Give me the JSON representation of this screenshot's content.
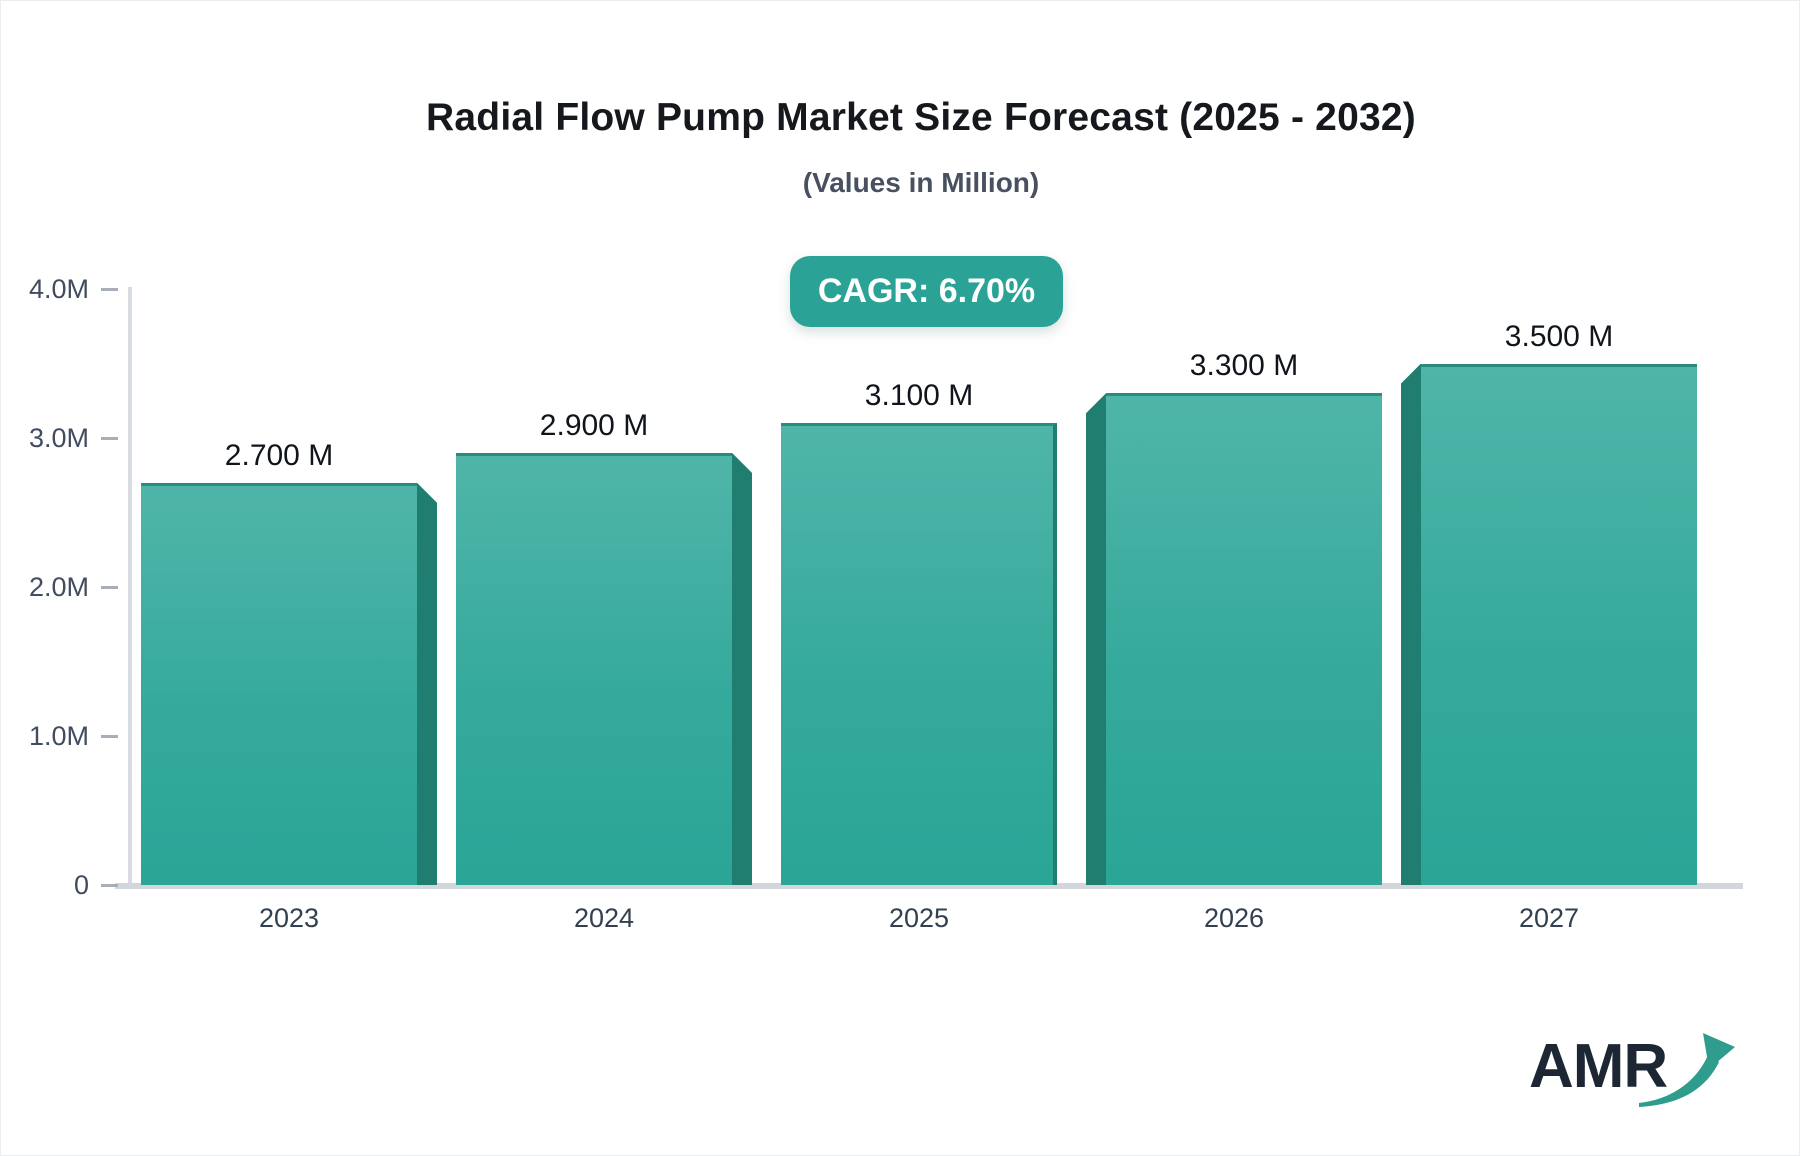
{
  "header": {
    "title": "Radial Flow Pump Market Size Forecast (2025 - 2032)",
    "subtitle": "(Values in Million)"
  },
  "cagr_badge": {
    "label": "CAGR: 6.70%"
  },
  "chart_data": {
    "type": "bar",
    "title": "Radial Flow Pump Market Size Forecast (2025 - 2032)",
    "subtitle": "(Values in Million)",
    "unit": "Million (M)",
    "cagr": "6.70%",
    "categories": [
      "2023",
      "2024",
      "2025",
      "2026",
      "2027"
    ],
    "values": [
      2.7,
      2.9,
      3.1,
      3.3,
      3.5
    ],
    "value_labels": [
      "2.700 M",
      "2.900 M",
      "3.100 M",
      "3.300 M",
      "3.500 M"
    ],
    "ylim": [
      0,
      4.0
    ],
    "yticks": [
      {
        "value": 4.0,
        "label": "4.0M"
      },
      {
        "value": 3.0,
        "label": "3.0M"
      },
      {
        "value": 2.0,
        "label": "2.0M"
      },
      {
        "value": 1.0,
        "label": "1.0M"
      },
      {
        "value": 0,
        "label": "0"
      }
    ],
    "grid": false,
    "legend": false,
    "bar_style": "3d-extruded"
  },
  "colors": {
    "accent": "#2aa396",
    "bar_face_top": "#50b5a9",
    "bar_face_mid": "#35aa9c",
    "bar_face_bottom": "#2aa596",
    "bar_side": "#1f7e70",
    "bar_edge": "#2b8b7e",
    "axis_line": "#d6d9dd",
    "tick_text": "#414c5e",
    "value_text": "#10151b",
    "title_text": "#15181c",
    "subtitle_text": "#47515f"
  },
  "logo": {
    "text": "AMR",
    "icon": "growth-arrow-icon",
    "text_color": "#1c2733",
    "arrow_color": "#2f9c8e"
  }
}
